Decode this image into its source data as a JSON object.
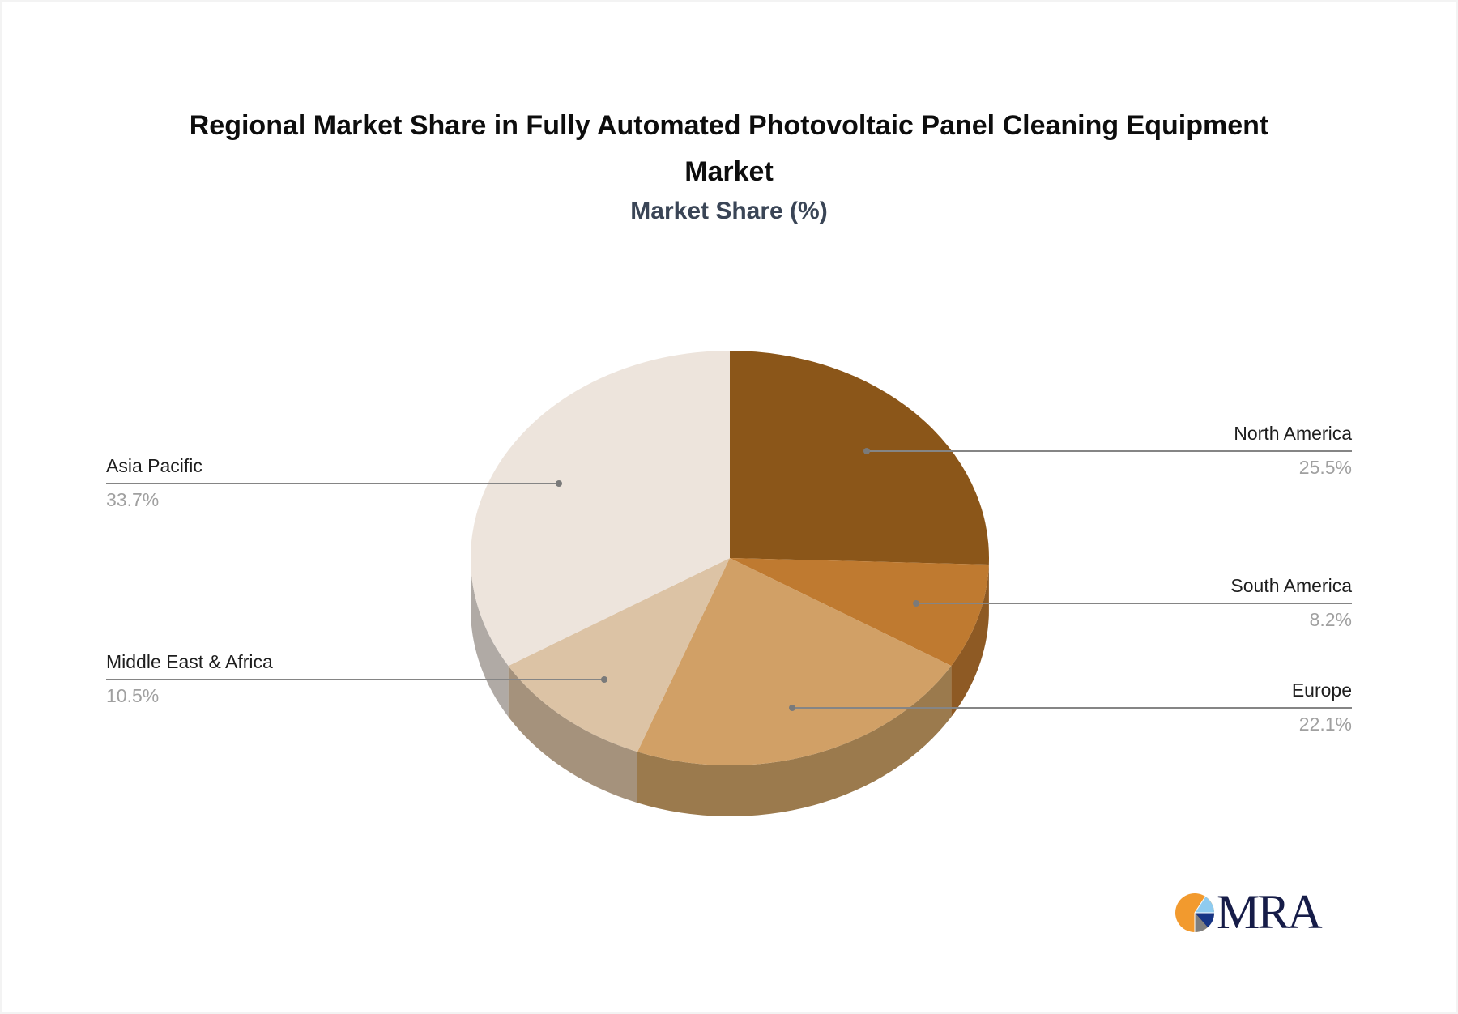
{
  "title": {
    "line1": "Regional Market Share in Fully Automated Photovoltaic Panel Cleaning Equipment",
    "line2": "Market"
  },
  "subtitle": "Market Share (%)",
  "slices": [
    {
      "label": "North America",
      "value_text": "25.5%",
      "value": 25.5,
      "top_color": "#8b5619",
      "side_color": "#8e5a24"
    },
    {
      "label": "South America",
      "value_text": "8.2%",
      "value": 8.2,
      "top_color": "#bf7a30",
      "side_color": "#8e5a24"
    },
    {
      "label": "Europe",
      "value_text": "22.1%",
      "value": 22.1,
      "top_color": "#d1a066",
      "side_color": "#9b7a4d"
    },
    {
      "label": "Middle East & Africa",
      "value_text": "10.5%",
      "value": 10.5,
      "top_color": "#dcc3a5",
      "side_color": "#a5927c"
    },
    {
      "label": "Asia Pacific",
      "value_text": "33.7%",
      "value": 33.7,
      "top_color": "#ede4dc",
      "side_color": "#b0aaa5"
    }
  ],
  "logo": {
    "text": "MRA"
  },
  "chart_data": {
    "type": "pie",
    "title": "Regional Market Share in Fully Automated Photovoltaic Panel Cleaning Equipment Market",
    "subtitle": "Market Share (%)",
    "categories": [
      "North America",
      "South America",
      "Europe",
      "Middle East & Africa",
      "Asia Pacific"
    ],
    "values": [
      25.5,
      8.2,
      22.1,
      10.5,
      33.7
    ],
    "unit": "%",
    "style": "3d-pie",
    "start_angle": "12 o'clock, clockwise",
    "legend": "none (callout labels)",
    "colors": [
      "#8b5619",
      "#bf7a30",
      "#d1a066",
      "#dcc3a5",
      "#ede4dc"
    ]
  }
}
